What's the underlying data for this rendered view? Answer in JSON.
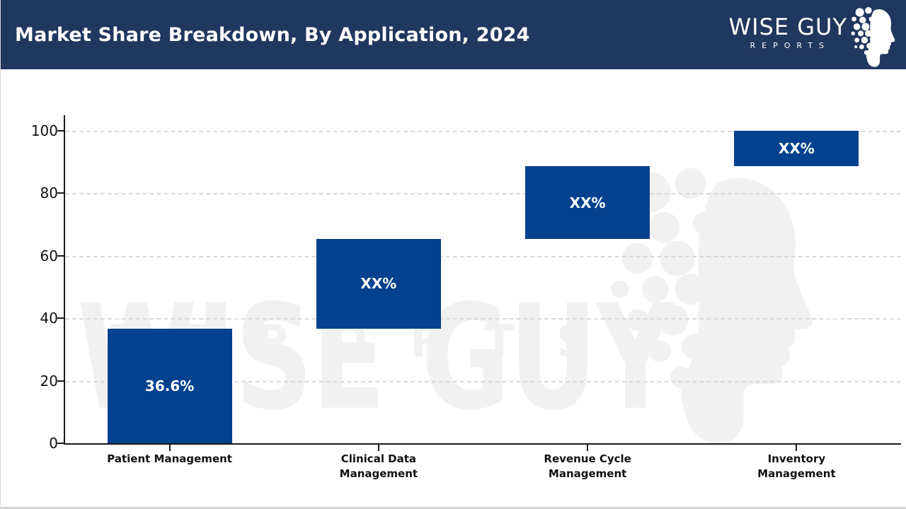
{
  "header": {
    "title": "Market Share Breakdown, By Application, 2024",
    "logo": {
      "name": "WISE GUY",
      "sub": "REPORTS"
    }
  },
  "watermark": {
    "line1": "WISE GUY",
    "line2": "REPORTS"
  },
  "colors": {
    "header_bg": "#20375f",
    "bar_fill": "#04418f",
    "grid": "#d9d9d9",
    "axis": "#1a1a1a",
    "bar_label_text": "#ffffff",
    "watermark": "#f1f1f2"
  },
  "chart_data": {
    "type": "bar",
    "subtype": "waterfall (floating cumulative market-share bars)",
    "title": "Market Share Breakdown, By Application, 2024",
    "xlabel": "",
    "ylabel": "",
    "ylim": [
      0,
      105
    ],
    "yticks": [
      0,
      20,
      40,
      60,
      80,
      100
    ],
    "grid": "horizontal dashed",
    "legend": "none",
    "categories": [
      [
        "Patient Management"
      ],
      [
        "Clinical Data",
        "Management"
      ],
      [
        "Revenue Cycle",
        "Management"
      ],
      [
        "Inventory",
        "Management"
      ]
    ],
    "segments": [
      {
        "category": "Patient Management",
        "start": 0,
        "end": 36.6,
        "label": "36.6%"
      },
      {
        "category": "Clinical Data Management",
        "start": 36.6,
        "end": 65.5,
        "label": "XX%"
      },
      {
        "category": "Revenue Cycle Management",
        "start": 65.5,
        "end": 88.6,
        "label": "XX%"
      },
      {
        "category": "Inventory Management",
        "start": 88.6,
        "end": 100,
        "label": "XX%"
      }
    ]
  }
}
